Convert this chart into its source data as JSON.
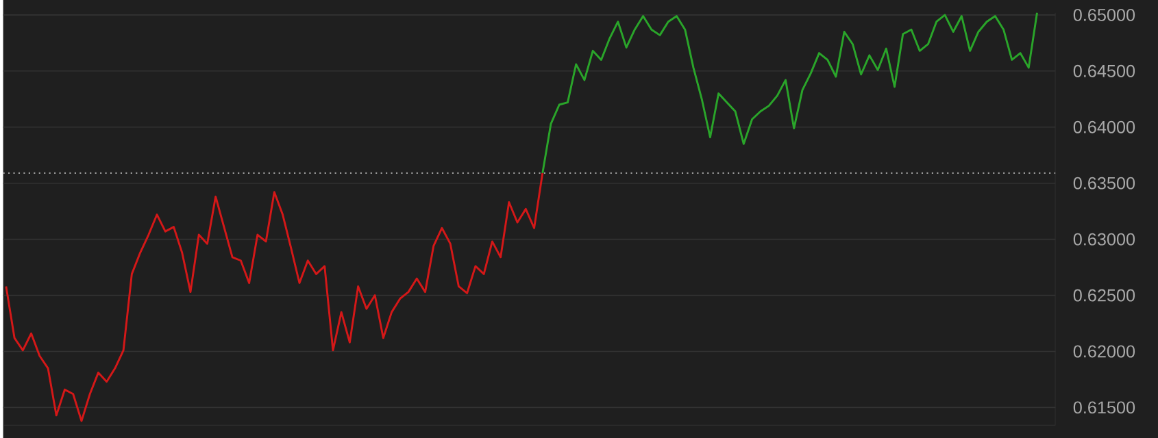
{
  "chart_data": {
    "type": "line",
    "categories": [
      null,
      null,
      null,
      null,
      null,
      null,
      null,
      null,
      null,
      null,
      null,
      null,
      null,
      null,
      null,
      null,
      null,
      null,
      null,
      null,
      null,
      null,
      null,
      null,
      null,
      null,
      null,
      null,
      null,
      null,
      null,
      null,
      null,
      null,
      null,
      null,
      null,
      null,
      null,
      null,
      null,
      null,
      null,
      null,
      null,
      null,
      null,
      null,
      null,
      null,
      null,
      null,
      null,
      null,
      null,
      null,
      null,
      null,
      null,
      null,
      null,
      null,
      null,
      null,
      null,
      null,
      null,
      null,
      null,
      null,
      null,
      null,
      null,
      null,
      null,
      null,
      null,
      null,
      null,
      null,
      null,
      null,
      null,
      null,
      null,
      null,
      null,
      null,
      null,
      null,
      null,
      null,
      null,
      null,
      null,
      null,
      null,
      null,
      null,
      null,
      null,
      null,
      null,
      null,
      null,
      null,
      null,
      null,
      null,
      null,
      null,
      null,
      null,
      null,
      null,
      null,
      null,
      null,
      null,
      null,
      null,
      null,
      null,
      null
    ],
    "series": [
      {
        "color": "#d41818",
        "values": [
          0.6258,
          0.6212,
          0.6201,
          0.6216,
          0.6196,
          0.6185,
          0.6143,
          0.6166,
          0.6162,
          0.6138,
          0.6162,
          0.6181,
          0.6173,
          0.6185,
          0.6201,
          0.6269,
          0.6288,
          0.6304,
          0.6322,
          0.6307,
          0.6311,
          0.6288,
          0.6253,
          0.6304,
          0.6296,
          0.6338,
          0.6311,
          0.6284,
          0.6281,
          0.6261,
          0.6304,
          0.6298,
          0.6342,
          0.6322,
          0.6292,
          0.6261,
          0.6281,
          0.6269,
          0.6276,
          0.6201,
          0.6235,
          0.6208,
          0.6258,
          0.6238,
          0.625,
          0.6212,
          0.6235,
          0.6247,
          0.6253,
          0.6265,
          0.6253,
          0.6294,
          0.631,
          0.6296,
          0.6258,
          0.6252,
          0.6276,
          0.6269,
          0.6298,
          0.6284,
          0.6333,
          0.6315,
          0.6327,
          0.631,
          0.6359,
          null,
          null,
          null,
          null,
          null,
          null,
          null,
          null,
          null,
          null,
          null,
          null,
          null,
          null,
          null,
          null,
          null,
          null,
          null,
          null,
          null,
          null,
          null,
          null,
          null,
          null,
          null,
          null,
          null,
          null,
          null,
          null,
          null,
          null,
          null,
          null,
          null,
          null,
          null,
          null,
          null,
          null,
          null,
          null,
          null,
          null,
          null,
          null,
          null,
          null,
          null,
          null,
          null,
          null,
          null,
          null,
          null,
          null,
          null
        ]
      },
      {
        "color": "#2aa52a",
        "values": [
          null,
          null,
          null,
          null,
          null,
          null,
          null,
          null,
          null,
          null,
          null,
          null,
          null,
          null,
          null,
          null,
          null,
          null,
          null,
          null,
          null,
          null,
          null,
          null,
          null,
          null,
          null,
          null,
          null,
          null,
          null,
          null,
          null,
          null,
          null,
          null,
          null,
          null,
          null,
          null,
          null,
          null,
          null,
          null,
          null,
          null,
          null,
          null,
          null,
          null,
          null,
          null,
          null,
          null,
          null,
          null,
          null,
          null,
          null,
          null,
          null,
          null,
          null,
          null,
          0.6359,
          0.6403,
          0.642,
          0.6422,
          0.6456,
          0.6442,
          0.6468,
          0.646,
          0.6479,
          0.6494,
          0.6471,
          0.6487,
          0.6499,
          0.6487,
          0.6482,
          0.6494,
          0.6499,
          0.6487,
          0.6453,
          0.6425,
          0.6391,
          0.643,
          0.6422,
          0.6414,
          0.6385,
          0.6407,
          0.6414,
          0.6419,
          0.6428,
          0.6442,
          0.6399,
          0.6433,
          0.6448,
          0.6466,
          0.646,
          0.6445,
          0.6485,
          0.6474,
          0.6447,
          0.6464,
          0.6451,
          0.647,
          0.6436,
          0.6483,
          0.6487,
          0.6468,
          0.6474,
          0.6494,
          0.65,
          0.6485,
          0.6499,
          0.6468,
          0.6485,
          0.6494,
          0.6499,
          0.6487,
          0.646,
          0.6466,
          0.6453,
          0.6502
        ]
      }
    ],
    "ylim": [
      0.6134,
      0.6502
    ],
    "yticks": [
      {
        "value": 0.615,
        "label": "0.61500"
      },
      {
        "value": 0.62,
        "label": "0.62000"
      },
      {
        "value": 0.625,
        "label": "0.62500"
      },
      {
        "value": 0.63,
        "label": "0.63000"
      },
      {
        "value": 0.635,
        "label": "0.63500"
      },
      {
        "value": 0.64,
        "label": "0.64000"
      },
      {
        "value": 0.645,
        "label": "0.64500"
      },
      {
        "value": 0.65,
        "label": "0.65000"
      }
    ],
    "grid": "y",
    "tick_labels": "y",
    "marker": "none",
    "line_style": "solid",
    "ref_lines": [
      {
        "axis": "y",
        "value": 0.6359,
        "color": "#9a9a9a",
        "line_style": "dotted"
      }
    ]
  }
}
